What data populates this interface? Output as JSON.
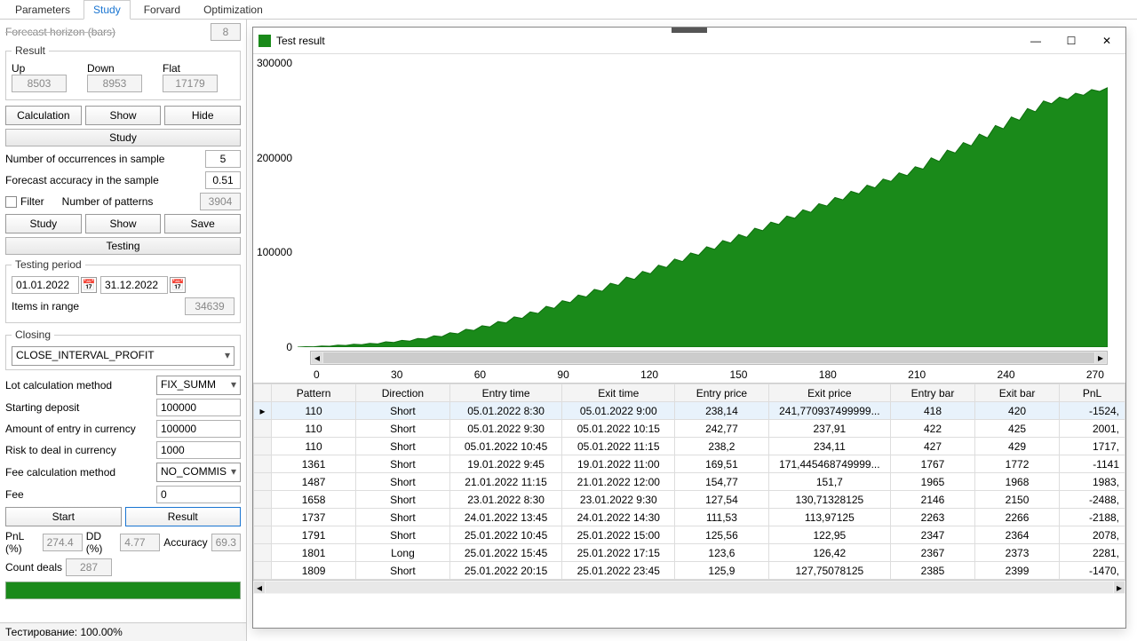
{
  "tabs": {
    "parameters": "Parameters",
    "study": "Study",
    "forward": "Forvard",
    "optimization": "Optimization"
  },
  "left": {
    "forecast_horizon_label": "Forecast horizon (bars)",
    "forecast_horizon_value": "8",
    "result_legend": "Result",
    "up_label": "Up",
    "up_value": "8503",
    "down_label": "Down",
    "down_value": "8953",
    "flat_label": "Flat",
    "flat_value": "17179",
    "btn_calc": "Calculation",
    "btn_show": "Show",
    "btn_hide": "Hide",
    "hdr_study": "Study",
    "num_occ_label": "Number of occurrences in sample",
    "num_occ_value": "5",
    "forecast_acc_label": "Forecast accuracy in the sample",
    "forecast_acc_value": "0.51",
    "filter_label": "Filter",
    "num_patterns_label": "Number of patterns",
    "num_patterns_value": "3904",
    "btn_study": "Study",
    "btn_show2": "Show",
    "btn_save": "Save",
    "hdr_testing": "Testing",
    "testing_period_legend": "Testing period",
    "date_from": "01.01.2022",
    "date_to": "31.12.2022",
    "items_in_range_label": "Items in range",
    "items_in_range_value": "34639",
    "closing_legend": "Closing",
    "closing_value": "CLOSE_INTERVAL_PROFIT",
    "lot_method_label": "Lot calculation method",
    "lot_method_value": "FIX_SUMM",
    "starting_deposit_label": "Starting deposit",
    "starting_deposit_value": "100000",
    "amount_entry_label": "Amount of entry in currency",
    "amount_entry_value": "100000",
    "risk_deal_label": "Risk to deal in currency",
    "risk_deal_value": "1000",
    "fee_method_label": "Fee calculation method",
    "fee_method_value": "NO_COMMIS",
    "fee_label": "Fee",
    "fee_value": "0",
    "btn_start": "Start",
    "btn_result": "Result",
    "pnl_pct_label": "PnL (%)",
    "pnl_pct_value": "274.4",
    "dd_pct_label": "DD (%)",
    "dd_pct_value": "4.77",
    "accuracy_label": "Accuracy",
    "accuracy_value": "69.3",
    "count_deals_label": "Count deals",
    "count_deals_value": "287",
    "status": "Тестирование: 100.00%"
  },
  "window": {
    "title": "Test result",
    "chart": {
      "type": "area",
      "ylim": [
        0,
        300000
      ],
      "yticks": [
        0,
        100000,
        200000,
        300000
      ],
      "xlim": [
        0,
        290
      ],
      "xticks": [
        0,
        30,
        60,
        90,
        120,
        150,
        180,
        210,
        240,
        270
      ],
      "fill_color": "#1a8a1a",
      "line_color": "#0d6e0d",
      "background": "#ffffff",
      "values": [
        0,
        500,
        400,
        1200,
        900,
        2200,
        1800,
        3000,
        2600,
        4000,
        3400,
        5600,
        5000,
        7100,
        6400,
        9200,
        8500,
        12000,
        11100,
        15200,
        14100,
        18800,
        17600,
        22600,
        21400,
        27000,
        25500,
        32000,
        30400,
        37200,
        35500,
        43000,
        41000,
        49000,
        47000,
        55000,
        53000,
        61000,
        59000,
        67500,
        65200,
        74000,
        71500,
        80000,
        77500,
        86500,
        84000,
        93000,
        90400,
        99500,
        97000,
        106000,
        103300,
        112500,
        110000,
        119000,
        116000,
        125500,
        123000,
        132000,
        129500,
        138500,
        136000,
        145000,
        142300,
        151500,
        149000,
        158000,
        155500,
        164500,
        161800,
        171000,
        168200,
        177500,
        175000,
        184000,
        181000,
        190500,
        188000,
        200000,
        196000,
        208000,
        205000,
        216000,
        212500,
        225000,
        221000,
        234000,
        230500,
        243000,
        239500,
        252000,
        248500,
        260000,
        257000,
        264000,
        261500,
        268000,
        266000,
        272000,
        270000,
        274000
      ]
    },
    "columns": [
      "Pattern",
      "Direction",
      "Entry time",
      "Exit time",
      "Entry price",
      "Exit price",
      "Entry bar",
      "Exit bar",
      "PnL"
    ],
    "rows": [
      [
        "110",
        "Short",
        "05.01.2022 8:30",
        "05.01.2022 9:00",
        "238,14",
        "241,770937499999...",
        "418",
        "420",
        "-1524,"
      ],
      [
        "110",
        "Short",
        "05.01.2022 9:30",
        "05.01.2022 10:15",
        "242,77",
        "237,91",
        "422",
        "425",
        "2001,"
      ],
      [
        "110",
        "Short",
        "05.01.2022 10:45",
        "05.01.2022 11:15",
        "238,2",
        "234,11",
        "427",
        "429",
        "1717,"
      ],
      [
        "1361",
        "Short",
        "19.01.2022 9:45",
        "19.01.2022 11:00",
        "169,51",
        "171,445468749999...",
        "1767",
        "1772",
        "-1141"
      ],
      [
        "1487",
        "Short",
        "21.01.2022 11:15",
        "21.01.2022 12:00",
        "154,77",
        "151,7",
        "1965",
        "1968",
        "1983,"
      ],
      [
        "1658",
        "Short",
        "23.01.2022 8:30",
        "23.01.2022 9:30",
        "127,54",
        "130,71328125",
        "2146",
        "2150",
        "-2488,"
      ],
      [
        "1737",
        "Short",
        "24.01.2022 13:45",
        "24.01.2022 14:30",
        "111,53",
        "113,97125",
        "2263",
        "2266",
        "-2188,"
      ],
      [
        "1791",
        "Short",
        "25.01.2022 10:45",
        "25.01.2022 15:00",
        "125,56",
        "122,95",
        "2347",
        "2364",
        "2078,"
      ],
      [
        "1801",
        "Long",
        "25.01.2022 15:45",
        "25.01.2022 17:15",
        "123,6",
        "126,42",
        "2367",
        "2373",
        "2281,"
      ],
      [
        "1809",
        "Short",
        "25.01.2022 20:15",
        "25.01.2022 23:45",
        "125,9",
        "127,75078125",
        "2385",
        "2399",
        "-1470,"
      ]
    ]
  }
}
